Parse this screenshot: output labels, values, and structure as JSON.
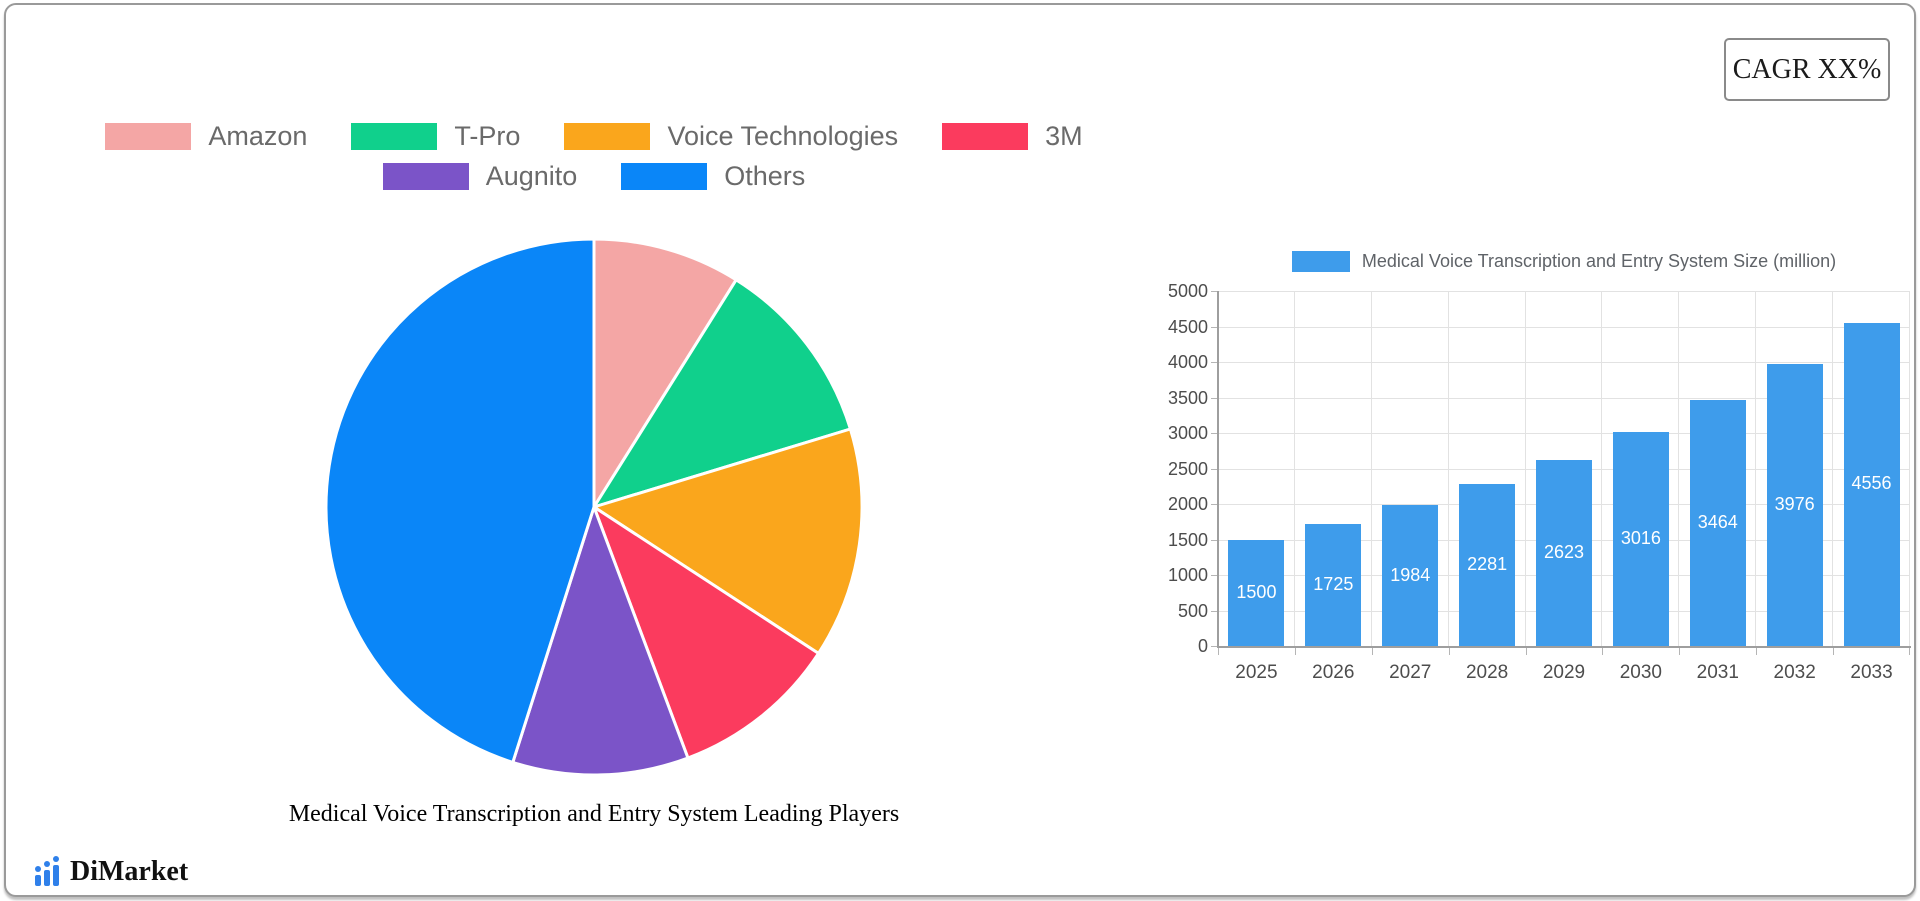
{
  "window": {
    "cagr_label": "CAGR XX%"
  },
  "brand": {
    "name": "DiMarket",
    "accent_color": "#2f80ea"
  },
  "chart_data": [
    {
      "type": "pie",
      "title": "Medical Voice Transcription and Entry System Leading Players",
      "labels": [
        "Amazon",
        "T-Pro",
        "Voice Technologies",
        "3M",
        "Augnito",
        "Others"
      ],
      "values_percent": [
        8.9,
        11.4,
        13.9,
        10.1,
        10.6,
        45.1
      ],
      "colors": [
        "#f4a6a5",
        "#10d08c",
        "#faa61c",
        "#fb3b5e",
        "#7b54c8",
        "#0a86f8"
      ],
      "legend_rows": [
        [
          "Amazon",
          "T-Pro",
          "Voice Technologies",
          "3M"
        ],
        [
          "Augnito",
          "Others"
        ]
      ],
      "legend_position": "top",
      "slice_border_color": "#ffffff",
      "start_angle_deg": 0,
      "direction": "clockwise-from-top"
    },
    {
      "type": "bar",
      "legend": "Medical Voice Transcription and Entry System Size (million)",
      "categories": [
        "2025",
        "2026",
        "2027",
        "2028",
        "2029",
        "2030",
        "2031",
        "2032",
        "2033"
      ],
      "values": [
        1500,
        1725,
        1984,
        2281,
        2623,
        3016,
        3464,
        3976,
        4556
      ],
      "bar_color": "#3e9ceb",
      "value_label_color": "#ffffff",
      "y_ticks": [
        0,
        500,
        1000,
        1500,
        2000,
        2500,
        3000,
        3500,
        4000,
        4500,
        5000
      ],
      "ylim": [
        0,
        5000
      ],
      "grid": true,
      "xlabel": "",
      "ylabel": ""
    }
  ]
}
